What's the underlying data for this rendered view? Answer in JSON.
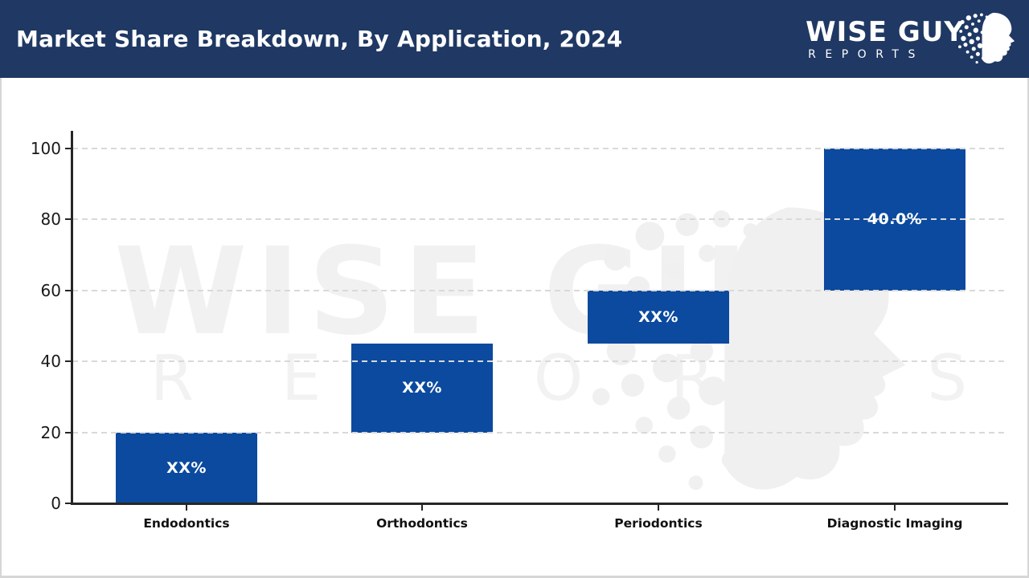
{
  "header": {
    "title": "Market Share Breakdown, By Application, 2024",
    "bg_color": "#1f3864",
    "logo": {
      "line1": "WISE GUY",
      "line2": "REPORTS"
    }
  },
  "watermark": {
    "line1": "WISE GUY",
    "line2": "R E P O R T S"
  },
  "chart_data": {
    "type": "bar",
    "subtype": "waterfall",
    "title": "Market Share Breakdown, By Application, 2024",
    "categories": [
      "Endodontics",
      "Orthodontics",
      "Periodontics",
      "Diagnostic Imaging"
    ],
    "bars": [
      {
        "category": "Endodontics",
        "start": 0,
        "end": 20,
        "value": 20,
        "value_label": "XX%"
      },
      {
        "category": "Orthodontics",
        "start": 20,
        "end": 45,
        "value": 25,
        "value_label": "XX%"
      },
      {
        "category": "Periodontics",
        "start": 45,
        "end": 60,
        "value": 15,
        "value_label": "XX%"
      },
      {
        "category": "Diagnostic Imaging",
        "start": 60,
        "end": 100,
        "value": 40,
        "value_label": "40.0%"
      }
    ],
    "yticks": [
      0,
      20,
      40,
      60,
      80,
      100
    ],
    "ylim": [
      0,
      105
    ],
    "xlabel": "",
    "ylabel": "",
    "grid": "horizontal-dashed",
    "gridline_color": "#d9d9d9",
    "bar_color": "#0b4a9f",
    "bar_label_color": "#ffffff",
    "legend": "none"
  }
}
